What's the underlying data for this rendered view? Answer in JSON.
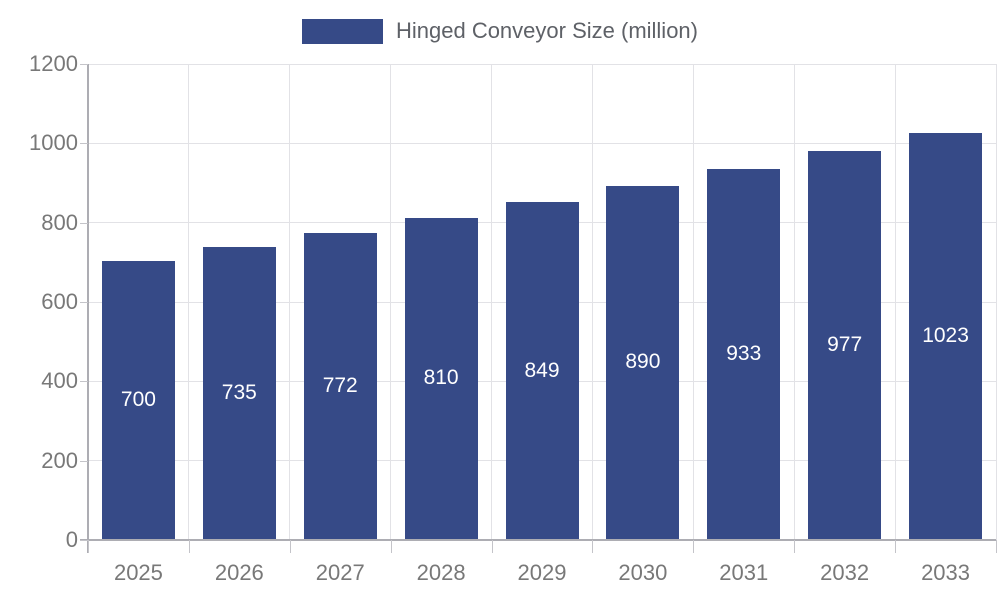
{
  "chart_data": {
    "type": "bar",
    "title": "",
    "categories": [
      "2025",
      "2026",
      "2027",
      "2028",
      "2029",
      "2030",
      "2031",
      "2032",
      "2033"
    ],
    "series": [
      {
        "name": "Hinged Conveyor Size (million)",
        "values": [
          700,
          735,
          772,
          810,
          849,
          890,
          933,
          977,
          1023
        ]
      }
    ],
    "value_labels_shown": true,
    "xlabel": "",
    "ylabel": "",
    "ylim": [
      0,
      1200
    ],
    "y_ticks": [
      0,
      200,
      400,
      600,
      800,
      1000,
      1200
    ],
    "grid": true,
    "legend_position": "top-center"
  },
  "legend": {
    "label": "Hinged Conveyor Size (million)"
  },
  "colors": {
    "bar": "#364a87",
    "bar_value_text": "#ffffff",
    "grid": "#e2e2e6",
    "axis_line": "#adadb3",
    "tick": "#c4c4c9",
    "axis_text": "#787878",
    "legend_text": "#5e6167",
    "background": "#ffffff"
  }
}
